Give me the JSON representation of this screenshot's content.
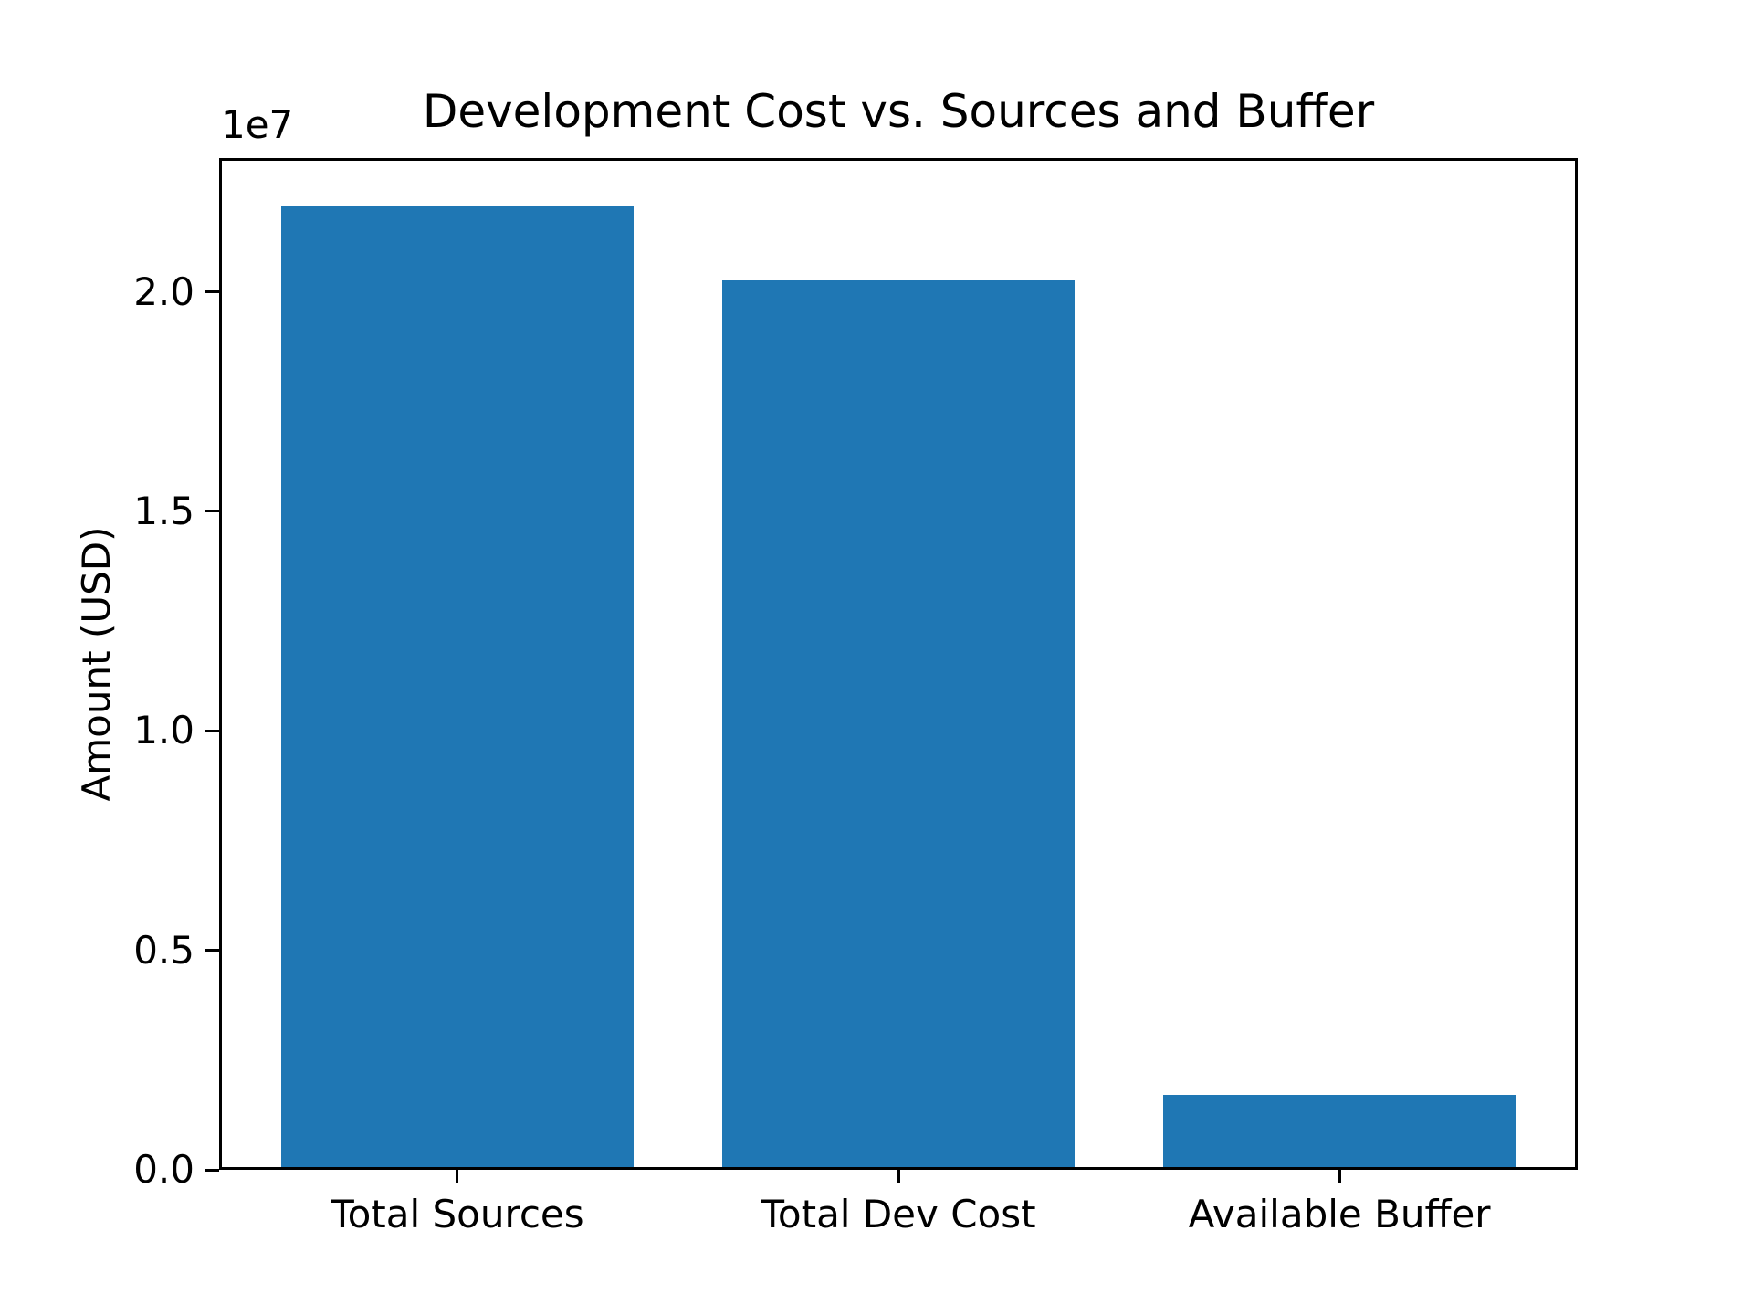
{
  "chart_data": {
    "type": "bar",
    "title": "Development Cost vs. Sources and Buffer",
    "xlabel": "",
    "ylabel": "Amount (USD)",
    "offset_text": "1e7",
    "categories": [
      "Total Sources",
      "Total Dev Cost",
      "Available Buffer"
    ],
    "values": [
      21950000,
      20250000,
      1700000
    ],
    "bar_color": "#1f77b4",
    "background_color": "#ffffff",
    "spine_color": "#000000",
    "ylim": [
      0,
      23047500
    ],
    "xlim": [
      -0.54,
      2.54
    ],
    "bar_width": 0.8,
    "yticks": [
      0,
      5000000,
      10000000,
      15000000,
      20000000
    ],
    "ytick_labels": [
      "0.0",
      "0.5",
      "1.0",
      "1.5",
      "2.0"
    ],
    "grid": false,
    "legend_position": "none"
  }
}
